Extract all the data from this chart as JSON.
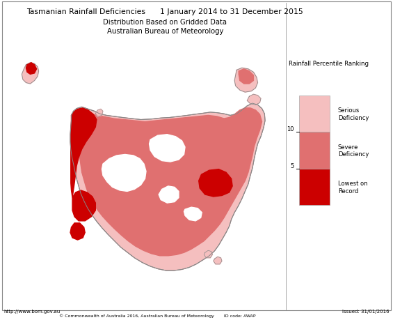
{
  "title_line1": "Tasmanian Rainfall Deficiencies      1 January 2014 to 31 December 2015",
  "title_line2": "Distribution Based on Gridded Data",
  "title_line3": "Australian Bureau of Meteorology",
  "legend_title": "Rainfall Percentile Ranking",
  "legend_labels": [
    "Serious\nDeficiency",
    "Severe\nDeficiency",
    "Lowest on\nRecord"
  ],
  "legend_ticks": [
    "10",
    "5"
  ],
  "legend_colors": [
    "#f5bfbf",
    "#e07070",
    "#cc0000"
  ],
  "footer_left": "http://www.bom.gov.au",
  "footer_center": "© Commonwealth of Australia 2016, Australian Bureau of Meteorology       ID code: AWAP",
  "footer_right": "Issued: 31/01/2016",
  "map_border_color": "#888888",
  "background_color": "#ffffff",
  "serious_color": "#f5bfbf",
  "severe_color": "#e07070",
  "lowest_color": "#cc0000",
  "tasmania_main": [
    [
      144.68,
      -40.68
    ],
    [
      144.72,
      -40.6
    ],
    [
      144.78,
      -40.55
    ],
    [
      144.88,
      -40.52
    ],
    [
      145.0,
      -40.56
    ],
    [
      145.12,
      -40.6
    ],
    [
      145.22,
      -40.65
    ],
    [
      145.35,
      -40.68
    ],
    [
      145.5,
      -40.7
    ],
    [
      145.65,
      -40.72
    ],
    [
      145.82,
      -40.74
    ],
    [
      146.0,
      -40.76
    ],
    [
      146.2,
      -40.75
    ],
    [
      146.38,
      -40.73
    ],
    [
      146.55,
      -40.72
    ],
    [
      146.72,
      -40.7
    ],
    [
      146.88,
      -40.68
    ],
    [
      147.02,
      -40.66
    ],
    [
      147.18,
      -40.64
    ],
    [
      147.32,
      -40.62
    ],
    [
      147.45,
      -40.63
    ],
    [
      147.58,
      -40.65
    ],
    [
      147.7,
      -40.68
    ],
    [
      147.82,
      -40.65
    ],
    [
      147.92,
      -40.58
    ],
    [
      148.02,
      -40.5
    ],
    [
      148.12,
      -40.45
    ],
    [
      148.22,
      -40.48
    ],
    [
      148.3,
      -40.55
    ],
    [
      148.35,
      -40.65
    ],
    [
      148.36,
      -40.78
    ],
    [
      148.33,
      -40.92
    ],
    [
      148.28,
      -41.08
    ],
    [
      148.22,
      -41.22
    ],
    [
      148.18,
      -41.38
    ],
    [
      148.15,
      -41.52
    ],
    [
      148.12,
      -41.68
    ],
    [
      148.08,
      -41.82
    ],
    [
      148.04,
      -41.98
    ],
    [
      147.98,
      -42.12
    ],
    [
      147.92,
      -42.26
    ],
    [
      147.85,
      -42.4
    ],
    [
      147.78,
      -42.52
    ],
    [
      147.72,
      -42.65
    ],
    [
      147.68,
      -42.78
    ],
    [
      147.62,
      -42.9
    ],
    [
      147.55,
      -43.02
    ],
    [
      147.48,
      -43.14
    ],
    [
      147.4,
      -43.25
    ],
    [
      147.3,
      -43.34
    ],
    [
      147.18,
      -43.42
    ],
    [
      147.05,
      -43.5
    ],
    [
      146.92,
      -43.56
    ],
    [
      146.78,
      -43.6
    ],
    [
      146.63,
      -43.62
    ],
    [
      146.48,
      -43.62
    ],
    [
      146.33,
      -43.59
    ],
    [
      146.18,
      -43.54
    ],
    [
      146.03,
      -43.47
    ],
    [
      145.88,
      -43.38
    ],
    [
      145.75,
      -43.28
    ],
    [
      145.62,
      -43.18
    ],
    [
      145.5,
      -43.06
    ],
    [
      145.38,
      -42.94
    ],
    [
      145.27,
      -42.82
    ],
    [
      145.17,
      -42.7
    ],
    [
      145.08,
      -42.58
    ],
    [
      144.99,
      -42.44
    ],
    [
      144.92,
      -42.3
    ],
    [
      144.86,
      -42.16
    ],
    [
      144.82,
      -42.02
    ],
    [
      144.78,
      -41.88
    ],
    [
      144.75,
      -41.74
    ],
    [
      144.72,
      -41.6
    ],
    [
      144.69,
      -41.46
    ],
    [
      144.67,
      -41.32
    ],
    [
      144.66,
      -41.18
    ],
    [
      144.66,
      -41.04
    ],
    [
      144.67,
      -40.9
    ],
    [
      144.68,
      -40.78
    ],
    [
      144.68,
      -40.68
    ]
  ],
  "severe_outer": [
    [
      144.7,
      -40.7
    ],
    [
      144.76,
      -40.62
    ],
    [
      144.84,
      -40.57
    ],
    [
      144.96,
      -40.6
    ],
    [
      145.1,
      -40.65
    ],
    [
      145.25,
      -40.7
    ],
    [
      145.42,
      -40.72
    ],
    [
      145.62,
      -40.74
    ],
    [
      145.82,
      -40.76
    ],
    [
      146.02,
      -40.78
    ],
    [
      146.22,
      -40.76
    ],
    [
      146.42,
      -40.74
    ],
    [
      146.62,
      -40.72
    ],
    [
      146.82,
      -40.7
    ],
    [
      147.0,
      -40.68
    ],
    [
      147.18,
      -40.66
    ],
    [
      147.35,
      -40.65
    ],
    [
      147.52,
      -40.68
    ],
    [
      147.66,
      -40.72
    ],
    [
      147.76,
      -40.7
    ],
    [
      147.86,
      -40.62
    ],
    [
      147.96,
      -40.54
    ],
    [
      148.06,
      -40.5
    ],
    [
      148.16,
      -40.52
    ],
    [
      148.24,
      -40.58
    ],
    [
      148.3,
      -40.68
    ],
    [
      148.32,
      -40.82
    ],
    [
      148.28,
      -40.98
    ],
    [
      148.22,
      -41.14
    ],
    [
      148.17,
      -41.3
    ],
    [
      148.13,
      -41.46
    ],
    [
      148.1,
      -41.62
    ],
    [
      148.06,
      -41.78
    ],
    [
      148.0,
      -41.94
    ],
    [
      147.94,
      -42.08
    ],
    [
      147.87,
      -42.22
    ],
    [
      147.8,
      -42.36
    ],
    [
      147.73,
      -42.5
    ],
    [
      147.66,
      -42.63
    ],
    [
      147.6,
      -42.76
    ],
    [
      147.53,
      -42.88
    ],
    [
      147.45,
      -43.0
    ],
    [
      147.36,
      -43.12
    ],
    [
      147.26,
      -43.22
    ],
    [
      147.14,
      -43.3
    ],
    [
      147.0,
      -43.38
    ],
    [
      146.86,
      -43.44
    ],
    [
      146.72,
      -43.48
    ],
    [
      146.56,
      -43.5
    ],
    [
      146.4,
      -43.5
    ],
    [
      146.25,
      -43.47
    ],
    [
      146.1,
      -43.42
    ],
    [
      145.96,
      -43.35
    ],
    [
      145.82,
      -43.25
    ],
    [
      145.7,
      -43.15
    ],
    [
      145.57,
      -43.03
    ],
    [
      145.45,
      -42.91
    ],
    [
      145.34,
      -42.79
    ],
    [
      145.23,
      -42.67
    ],
    [
      145.13,
      -42.54
    ],
    [
      145.04,
      -42.4
    ],
    [
      144.97,
      -42.26
    ],
    [
      144.91,
      -42.12
    ],
    [
      144.86,
      -41.98
    ],
    [
      144.82,
      -41.84
    ],
    [
      144.79,
      -41.7
    ],
    [
      144.76,
      -41.56
    ],
    [
      144.74,
      -41.42
    ],
    [
      144.72,
      -41.28
    ],
    [
      144.72,
      -41.14
    ],
    [
      144.73,
      -41.0
    ],
    [
      144.74,
      -40.86
    ],
    [
      144.75,
      -40.76
    ],
    [
      144.7,
      -40.7
    ]
  ],
  "lowest_west": [
    [
      144.68,
      -40.68
    ],
    [
      144.72,
      -40.62
    ],
    [
      144.8,
      -40.56
    ],
    [
      144.9,
      -40.54
    ],
    [
      145.0,
      -40.58
    ],
    [
      145.1,
      -40.66
    ],
    [
      145.16,
      -40.76
    ],
    [
      145.14,
      -40.9
    ],
    [
      145.06,
      -41.04
    ],
    [
      144.96,
      -41.18
    ],
    [
      144.88,
      -41.32
    ],
    [
      144.82,
      -41.48
    ],
    [
      144.78,
      -41.64
    ],
    [
      144.76,
      -41.8
    ],
    [
      144.74,
      -41.96
    ],
    [
      144.72,
      -42.1
    ],
    [
      144.7,
      -42.24
    ],
    [
      144.68,
      -42.1
    ],
    [
      144.67,
      -41.96
    ],
    [
      144.67,
      -41.82
    ],
    [
      144.67,
      -41.68
    ],
    [
      144.67,
      -41.54
    ],
    [
      144.67,
      -41.4
    ],
    [
      144.67,
      -41.26
    ],
    [
      144.67,
      -41.12
    ],
    [
      144.67,
      -40.98
    ],
    [
      144.68,
      -40.84
    ],
    [
      144.68,
      -40.68
    ]
  ],
  "lowest_sw": [
    [
      144.7,
      -42.24
    ],
    [
      144.76,
      -42.14
    ],
    [
      144.86,
      -42.1
    ],
    [
      144.98,
      -42.14
    ],
    [
      145.08,
      -42.22
    ],
    [
      145.14,
      -42.34
    ],
    [
      145.14,
      -42.48
    ],
    [
      145.06,
      -42.6
    ],
    [
      144.94,
      -42.68
    ],
    [
      144.82,
      -42.68
    ],
    [
      144.74,
      -42.6
    ],
    [
      144.7,
      -42.48
    ],
    [
      144.7,
      -42.36
    ],
    [
      144.7,
      -42.24
    ]
  ],
  "lowest_sw2": [
    [
      144.68,
      -42.8
    ],
    [
      144.74,
      -42.72
    ],
    [
      144.84,
      -42.72
    ],
    [
      144.92,
      -42.8
    ],
    [
      144.94,
      -42.9
    ],
    [
      144.9,
      -43.0
    ],
    [
      144.8,
      -43.04
    ],
    [
      144.7,
      -43.0
    ],
    [
      144.66,
      -42.9
    ],
    [
      144.68,
      -42.8
    ]
  ],
  "lowest_central_east": [
    [
      147.15,
      -41.8
    ],
    [
      147.3,
      -41.72
    ],
    [
      147.48,
      -41.7
    ],
    [
      147.62,
      -41.76
    ],
    [
      147.72,
      -41.88
    ],
    [
      147.74,
      -42.02
    ],
    [
      147.68,
      -42.14
    ],
    [
      147.54,
      -42.2
    ],
    [
      147.38,
      -42.22
    ],
    [
      147.22,
      -42.18
    ],
    [
      147.12,
      -42.06
    ],
    [
      147.1,
      -41.92
    ],
    [
      147.15,
      -41.8
    ]
  ],
  "severe_band": [
    [
      145.1,
      -40.66
    ],
    [
      145.28,
      -40.7
    ],
    [
      145.48,
      -40.74
    ],
    [
      145.68,
      -40.76
    ],
    [
      145.88,
      -40.78
    ],
    [
      146.08,
      -40.8
    ],
    [
      146.28,
      -40.78
    ],
    [
      146.48,
      -40.76
    ],
    [
      146.68,
      -40.74
    ],
    [
      146.88,
      -40.72
    ],
    [
      147.08,
      -40.7
    ],
    [
      147.28,
      -40.68
    ],
    [
      147.45,
      -40.7
    ],
    [
      147.58,
      -40.74
    ],
    [
      147.68,
      -40.72
    ],
    [
      147.78,
      -40.66
    ],
    [
      147.88,
      -40.58
    ],
    [
      147.98,
      -40.54
    ],
    [
      148.08,
      -40.54
    ],
    [
      148.18,
      -40.58
    ],
    [
      148.26,
      -40.66
    ],
    [
      148.3,
      -40.8
    ],
    [
      148.26,
      -40.96
    ],
    [
      148.2,
      -41.12
    ],
    [
      148.15,
      -41.28
    ],
    [
      148.12,
      -41.44
    ],
    [
      148.08,
      -41.6
    ],
    [
      148.04,
      -41.76
    ],
    [
      147.98,
      -41.92
    ],
    [
      147.9,
      -42.06
    ],
    [
      147.82,
      -42.2
    ],
    [
      147.74,
      -42.34
    ],
    [
      147.66,
      -42.48
    ],
    [
      147.58,
      -42.62
    ],
    [
      147.5,
      -42.74
    ],
    [
      147.4,
      -42.86
    ],
    [
      147.3,
      -42.96
    ],
    [
      147.2,
      -43.06
    ],
    [
      147.08,
      -43.14
    ],
    [
      146.95,
      -43.22
    ],
    [
      146.82,
      -43.28
    ],
    [
      146.68,
      -43.32
    ],
    [
      146.52,
      -43.34
    ],
    [
      146.36,
      -43.34
    ],
    [
      146.2,
      -43.3
    ],
    [
      146.05,
      -43.24
    ],
    [
      145.9,
      -43.16
    ],
    [
      145.76,
      -43.06
    ],
    [
      145.63,
      -42.95
    ],
    [
      145.5,
      -42.83
    ],
    [
      145.38,
      -42.71
    ],
    [
      145.27,
      -42.59
    ],
    [
      145.17,
      -42.46
    ],
    [
      145.08,
      -42.32
    ],
    [
      145.01,
      -42.18
    ],
    [
      144.96,
      -42.04
    ],
    [
      144.92,
      -41.9
    ],
    [
      144.88,
      -41.76
    ],
    [
      144.86,
      -41.62
    ],
    [
      144.84,
      -41.48
    ],
    [
      144.83,
      -41.34
    ],
    [
      144.83,
      -41.2
    ],
    [
      144.84,
      -41.06
    ],
    [
      144.86,
      -40.92
    ],
    [
      144.9,
      -40.78
    ],
    [
      144.96,
      -40.68
    ],
    [
      145.06,
      -40.64
    ],
    [
      145.1,
      -40.66
    ]
  ],
  "white_hole1": [
    [
      145.28,
      -41.6
    ],
    [
      145.4,
      -41.5
    ],
    [
      145.54,
      -41.44
    ],
    [
      145.7,
      -41.42
    ],
    [
      145.86,
      -41.44
    ],
    [
      145.98,
      -41.5
    ],
    [
      146.06,
      -41.6
    ],
    [
      146.1,
      -41.74
    ],
    [
      146.08,
      -41.88
    ],
    [
      146.0,
      -42.0
    ],
    [
      145.88,
      -42.08
    ],
    [
      145.74,
      -42.12
    ],
    [
      145.6,
      -42.1
    ],
    [
      145.46,
      -42.04
    ],
    [
      145.36,
      -41.94
    ],
    [
      145.28,
      -41.82
    ],
    [
      145.26,
      -41.7
    ],
    [
      145.28,
      -41.6
    ]
  ],
  "white_hole2": [
    [
      146.18,
      -41.14
    ],
    [
      146.32,
      -41.06
    ],
    [
      146.5,
      -41.04
    ],
    [
      146.66,
      -41.08
    ],
    [
      146.78,
      -41.16
    ],
    [
      146.84,
      -41.28
    ],
    [
      146.82,
      -41.42
    ],
    [
      146.72,
      -41.52
    ],
    [
      146.56,
      -41.56
    ],
    [
      146.4,
      -41.54
    ],
    [
      146.26,
      -41.46
    ],
    [
      146.18,
      -41.34
    ],
    [
      146.16,
      -41.22
    ],
    [
      146.18,
      -41.14
    ]
  ],
  "white_hole3": [
    [
      146.4,
      -42.08
    ],
    [
      146.52,
      -42.02
    ],
    [
      146.64,
      -42.04
    ],
    [
      146.72,
      -42.12
    ],
    [
      146.72,
      -42.24
    ],
    [
      146.64,
      -42.32
    ],
    [
      146.5,
      -42.34
    ],
    [
      146.38,
      -42.28
    ],
    [
      146.34,
      -42.18
    ],
    [
      146.4,
      -42.08
    ]
  ],
  "white_hole4": [
    [
      146.84,
      -42.46
    ],
    [
      146.96,
      -42.42
    ],
    [
      147.08,
      -42.44
    ],
    [
      147.16,
      -42.52
    ],
    [
      147.14,
      -42.62
    ],
    [
      147.04,
      -42.68
    ],
    [
      146.92,
      -42.66
    ],
    [
      146.84,
      -42.58
    ],
    [
      146.82,
      -42.5
    ],
    [
      146.84,
      -42.46
    ]
  ],
  "king_island": [
    [
      143.82,
      -39.72
    ],
    [
      143.9,
      -39.68
    ],
    [
      143.98,
      -39.7
    ],
    [
      144.04,
      -39.76
    ],
    [
      144.06,
      -39.84
    ],
    [
      144.04,
      -39.94
    ],
    [
      143.98,
      -40.02
    ],
    [
      143.9,
      -40.08
    ],
    [
      143.82,
      -40.06
    ],
    [
      143.76,
      -40.0
    ],
    [
      143.74,
      -39.9
    ],
    [
      143.78,
      -39.8
    ],
    [
      143.82,
      -39.72
    ]
  ],
  "king_lowest": [
    [
      143.84,
      -39.72
    ],
    [
      143.92,
      -39.68
    ],
    [
      143.98,
      -39.72
    ],
    [
      144.02,
      -39.8
    ],
    [
      143.98,
      -39.88
    ],
    [
      143.9,
      -39.9
    ],
    [
      143.84,
      -39.86
    ],
    [
      143.82,
      -39.78
    ],
    [
      143.84,
      -39.72
    ]
  ],
  "flinders_island": [
    [
      147.82,
      -39.82
    ],
    [
      147.92,
      -39.78
    ],
    [
      148.04,
      -39.8
    ],
    [
      148.14,
      -39.86
    ],
    [
      148.2,
      -39.96
    ],
    [
      148.22,
      -40.06
    ],
    [
      148.18,
      -40.16
    ],
    [
      148.1,
      -40.22
    ],
    [
      147.98,
      -40.24
    ],
    [
      147.88,
      -40.2
    ],
    [
      147.8,
      -40.12
    ],
    [
      147.78,
      -40.02
    ],
    [
      147.82,
      -39.82
    ]
  ],
  "flinders_lowest": [
    [
      147.86,
      -39.84
    ],
    [
      147.96,
      -39.8
    ],
    [
      148.06,
      -39.84
    ],
    [
      148.14,
      -39.92
    ],
    [
      148.14,
      -40.02
    ],
    [
      148.06,
      -40.08
    ],
    [
      147.96,
      -40.08
    ],
    [
      147.88,
      -40.02
    ],
    [
      147.86,
      -39.9
    ],
    [
      147.86,
      -39.84
    ]
  ],
  "cape_barren": [
    [
      148.06,
      -40.32
    ],
    [
      148.14,
      -40.28
    ],
    [
      148.22,
      -40.3
    ],
    [
      148.28,
      -40.36
    ],
    [
      148.26,
      -40.44
    ],
    [
      148.18,
      -40.48
    ],
    [
      148.08,
      -40.46
    ],
    [
      148.02,
      -40.4
    ],
    [
      148.06,
      -40.32
    ]
  ],
  "small_islands_se": [
    [
      147.22,
      -43.28
    ],
    [
      147.28,
      -43.24
    ],
    [
      147.34,
      -43.26
    ],
    [
      147.36,
      -43.32
    ],
    [
      147.32,
      -43.38
    ],
    [
      147.24,
      -43.38
    ],
    [
      147.2,
      -43.32
    ],
    [
      147.22,
      -43.28
    ]
  ],
  "small_islands_se2": [
    [
      147.4,
      -43.4
    ],
    [
      147.46,
      -43.36
    ],
    [
      147.52,
      -43.38
    ],
    [
      147.54,
      -43.44
    ],
    [
      147.5,
      -43.5
    ],
    [
      147.42,
      -43.5
    ],
    [
      147.38,
      -43.44
    ],
    [
      147.4,
      -43.4
    ]
  ],
  "peninsula_nw": [
    [
      145.14,
      -40.64
    ],
    [
      145.18,
      -40.58
    ],
    [
      145.24,
      -40.56
    ],
    [
      145.28,
      -40.6
    ],
    [
      145.26,
      -40.68
    ],
    [
      145.18,
      -40.7
    ],
    [
      145.14,
      -40.64
    ]
  ],
  "xlim": [
    143.4,
    148.7
  ],
  "ylim": [
    -43.8,
    -39.3
  ]
}
